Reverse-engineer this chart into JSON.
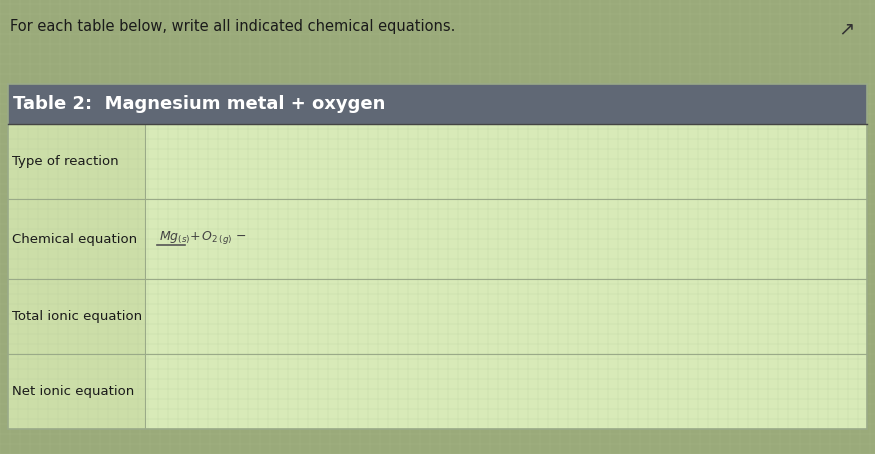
{
  "instruction_text": "For each table below, write all indicated chemical equations.",
  "table_title": "Table 2:  Magnesium metal + oxygen",
  "rows": [
    {
      "label": "Type of reaction",
      "content": ""
    },
    {
      "label": "Chemical equation",
      "content": "chem"
    },
    {
      "label": "Total ionic equation",
      "content": ""
    },
    {
      "label": "Net ionic equation",
      "content": ""
    }
  ],
  "header_bg": "#606875",
  "cell_left_bg": "#ccdea8",
  "cell_right_bg": "#d8eab8",
  "border_color": "#9aaa88",
  "instruction_color": "#1a1a1a",
  "header_text_color": "#ffffff",
  "row_label_color": "#1a1a1a",
  "content_color": "#555555",
  "fig_bg": "#9aaa7a",
  "grid_color": "#b0c090",
  "instruction_fontsize": 10.5,
  "title_fontsize": 13,
  "row_fontsize": 9.5
}
